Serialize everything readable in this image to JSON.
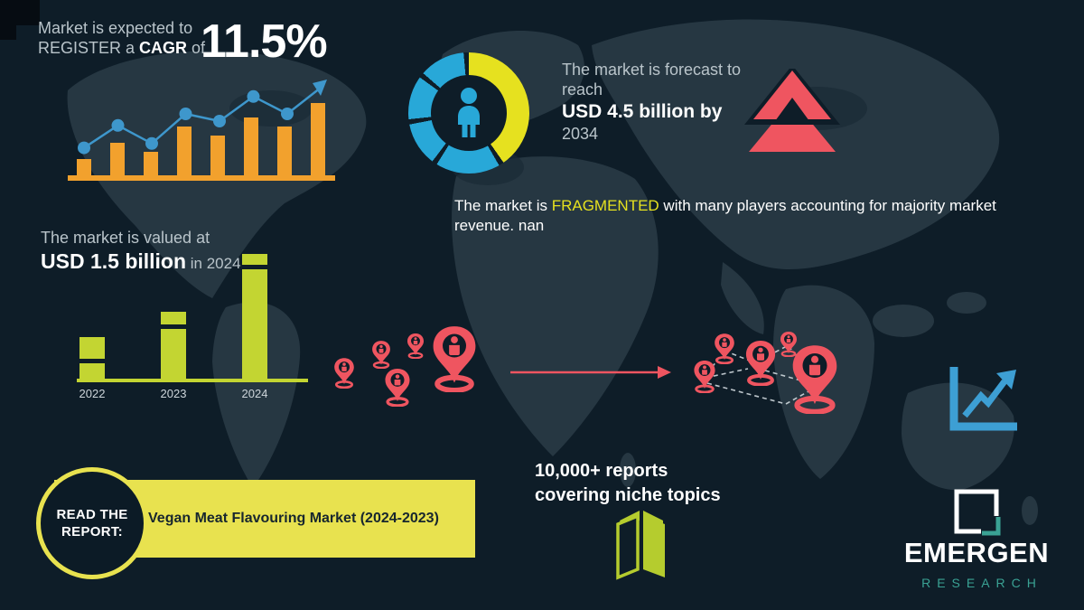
{
  "colors": {
    "background": "#0E1D28",
    "map_silhouette": "#263742",
    "bar_orange": "#F2A12D",
    "line_blue": "#3E97CC",
    "donut_yellow": "#E6E11F",
    "donut_teal": "#28A8D8",
    "pin_red": "#EF5560",
    "bar_green": "#C3D532",
    "banner_yellow": "#E8E24F",
    "text_gray": "#B9C4CA",
    "text_white": "#FFFFFF",
    "brand_teal": "#3AA294"
  },
  "cagr": {
    "line1": "Market is expected to",
    "line2_pre": "REGISTER a ",
    "line2_bold": "CAGR",
    "line2_post": " of",
    "value": "11.5%"
  },
  "forecast": {
    "line1": "The market is forecast to",
    "line2": "reach",
    "value": "USD 4.5 billion",
    "value_suffix": " by",
    "year": "2034"
  },
  "fragmentation": {
    "pre": "The market is ",
    "highlight": "FRAGMENTED",
    "post": " with many players accounting for majority market revenue. nan"
  },
  "valuation": {
    "line1": "The market is valued at",
    "value": "USD 1.5 billion",
    "suffix": " in 2024"
  },
  "cta": {
    "button_label": "READ THE REPORT:",
    "report_title": "Vegan Meat Flavouring Market (2024-2023)"
  },
  "promo": {
    "line1": "10,000+ reports",
    "line2": "covering niche topics"
  },
  "brand": {
    "name": "EMERGEN",
    "tagline": "RESEARCH"
  },
  "icons": [
    "person-icon",
    "double-up-arrow-icon",
    "location-pin-icon",
    "flow-arrow-icon",
    "open-book-icon",
    "trend-chart-icon",
    "brand-logo-square"
  ],
  "chart_data": [
    {
      "type": "bar+line",
      "description_visible": "growth trend chart under CAGR 11.5% headline (no axis labels shown)",
      "bars_relative": [
        22,
        45,
        32,
        67,
        55,
        80,
        68,
        100
      ],
      "line_relative": [
        38,
        69,
        44,
        85,
        75,
        109,
        85
      ],
      "arrow_up_right": true,
      "bar_color": "#F2A12D",
      "line_color": "#3E97CC"
    },
    {
      "type": "bar",
      "categories": [
        "2022",
        "2023",
        "2024"
      ],
      "values_est_usd_billion": [
        0.5,
        0.8,
        1.5
      ],
      "labeled_point": "2024 = USD 1.5 billion",
      "bar_color": "#C3D532"
    }
  ]
}
